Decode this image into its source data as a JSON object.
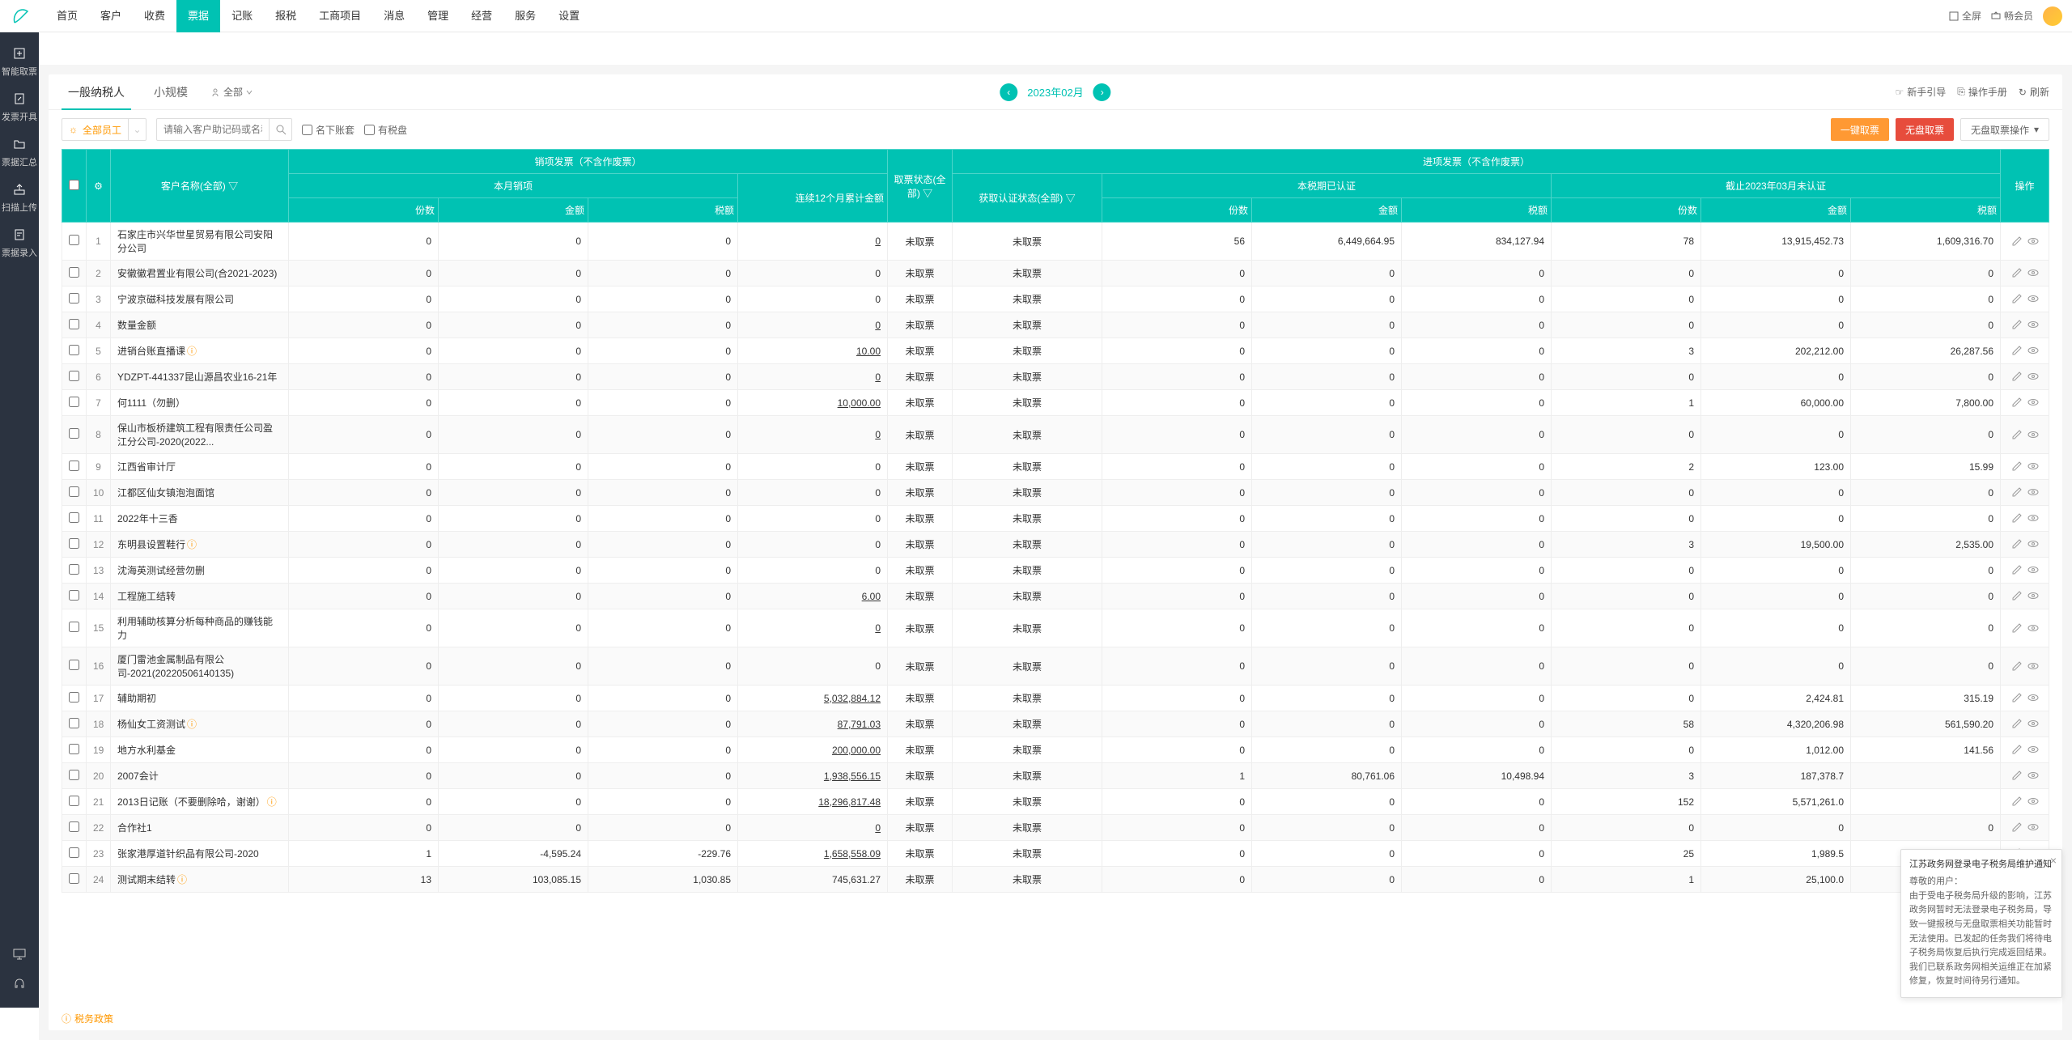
{
  "top_nav": {
    "items": [
      "首页",
      "客户",
      "收费",
      "票据",
      "记账",
      "报税",
      "工商项目",
      "消息",
      "管理",
      "经营",
      "服务",
      "设置"
    ],
    "active_index": 3,
    "right": {
      "fullscreen": "全屏",
      "member": "畅会员"
    }
  },
  "sidebar": {
    "items": [
      {
        "label": "智能取票",
        "icon": "plus-box"
      },
      {
        "label": "发票开具",
        "icon": "edit-doc"
      },
      {
        "label": "票据汇总",
        "icon": "folder"
      },
      {
        "label": "扫描上传",
        "icon": "upload"
      },
      {
        "label": "票据录入",
        "icon": "edit-doc2"
      }
    ]
  },
  "tabs": {
    "list": [
      "一般纳税人",
      "小规模"
    ],
    "active_index": 0,
    "filter_all": "全部",
    "date": "2023年02月",
    "right": {
      "guide": "新手引导",
      "manual": "操作手册",
      "refresh": "刷新"
    }
  },
  "filters": {
    "employee_select": "全部员工",
    "search_placeholder": "请输入客户助记码或名称",
    "cb1": "名下账套",
    "cb2": "有税盘",
    "btn_one_click": "一键取票",
    "btn_no_disk": "无盘取票",
    "btn_disk_ops": "无盘取票操作"
  },
  "table": {
    "headers": {
      "customer": "客户名称(全部)",
      "sales_group": "销项发票（不含作废票）",
      "this_month": "本月销项",
      "qty": "份数",
      "amount": "金额",
      "tax": "税额",
      "cumulative": "连续12个月累计金额",
      "fetch_status": "取票状态(全部)",
      "purchase_group": "进项发票（不含作废票）",
      "certified": "本税期已认证",
      "uncertified": "截止2023年03月未认证",
      "auth_status": "获取认证状态(全部)",
      "ops": "操作"
    },
    "rows": [
      {
        "n": 1,
        "name": "石家庄市兴华世星贸易有限公司安阳分公司",
        "warn": false,
        "q": 0,
        "a": "0",
        "t": "0",
        "cum": "0",
        "u": true,
        "fs": "未取票",
        "as": "未取票",
        "cq": 56,
        "ca": "6,449,664.95",
        "ct": "834,127.94",
        "uq": 78,
        "ua": "13,915,452.73",
        "ut": "1,609,316.70"
      },
      {
        "n": 2,
        "name": "安徽徽君置业有限公司(合2021-2023)",
        "warn": false,
        "q": 0,
        "a": "0",
        "t": "0",
        "cum": "0",
        "u": false,
        "fs": "未取票",
        "as": "未取票",
        "cq": 0,
        "ca": "0",
        "ct": "0",
        "uq": 0,
        "ua": "0",
        "ut": "0"
      },
      {
        "n": 3,
        "name": "宁波京磁科技发展有限公司",
        "warn": false,
        "q": 0,
        "a": "0",
        "t": "0",
        "cum": "0",
        "u": false,
        "fs": "未取票",
        "as": "未取票",
        "cq": 0,
        "ca": "0",
        "ct": "0",
        "uq": 0,
        "ua": "0",
        "ut": "0"
      },
      {
        "n": 4,
        "name": "数量金额",
        "warn": false,
        "q": 0,
        "a": "0",
        "t": "0",
        "cum": "0",
        "u": true,
        "fs": "未取票",
        "as": "未取票",
        "cq": 0,
        "ca": "0",
        "ct": "0",
        "uq": 0,
        "ua": "0",
        "ut": "0"
      },
      {
        "n": 5,
        "name": "进销台账直播课",
        "warn": true,
        "q": 0,
        "a": "0",
        "t": "0",
        "cum": "10.00",
        "u": true,
        "fs": "未取票",
        "as": "未取票",
        "cq": 0,
        "ca": "0",
        "ct": "0",
        "uq": 3,
        "ua": "202,212.00",
        "ut": "26,287.56"
      },
      {
        "n": 6,
        "name": "YDZPT-441337昆山源昌农业16-21年",
        "warn": false,
        "q": 0,
        "a": "0",
        "t": "0",
        "cum": "0",
        "u": true,
        "fs": "未取票",
        "as": "未取票",
        "cq": 0,
        "ca": "0",
        "ct": "0",
        "uq": 0,
        "ua": "0",
        "ut": "0"
      },
      {
        "n": 7,
        "name": "何1111（勿删）",
        "warn": false,
        "q": 0,
        "a": "0",
        "t": "0",
        "cum": "10,000.00",
        "u": true,
        "fs": "未取票",
        "as": "未取票",
        "cq": 0,
        "ca": "0",
        "ct": "0",
        "uq": 1,
        "ua": "60,000.00",
        "ut": "7,800.00"
      },
      {
        "n": 8,
        "name": "保山市板桥建筑工程有限责任公司盈江分公司-2020(2022...",
        "warn": false,
        "q": 0,
        "a": "0",
        "t": "0",
        "cum": "0",
        "u": true,
        "fs": "未取票",
        "as": "未取票",
        "cq": 0,
        "ca": "0",
        "ct": "0",
        "uq": 0,
        "ua": "0",
        "ut": "0"
      },
      {
        "n": 9,
        "name": "江西省审计厅",
        "warn": false,
        "q": 0,
        "a": "0",
        "t": "0",
        "cum": "0",
        "u": false,
        "fs": "未取票",
        "as": "未取票",
        "cq": 0,
        "ca": "0",
        "ct": "0",
        "uq": 2,
        "ua": "123.00",
        "ut": "15.99"
      },
      {
        "n": 10,
        "name": "江都区仙女镇泡泡面馆",
        "warn": false,
        "q": 0,
        "a": "0",
        "t": "0",
        "cum": "0",
        "u": false,
        "fs": "未取票",
        "as": "未取票",
        "cq": 0,
        "ca": "0",
        "ct": "0",
        "uq": 0,
        "ua": "0",
        "ut": "0"
      },
      {
        "n": 11,
        "name": "2022年十三香",
        "warn": false,
        "q": 0,
        "a": "0",
        "t": "0",
        "cum": "0",
        "u": false,
        "fs": "未取票",
        "as": "未取票",
        "cq": 0,
        "ca": "0",
        "ct": "0",
        "uq": 0,
        "ua": "0",
        "ut": "0"
      },
      {
        "n": 12,
        "name": "东明县设置鞋行",
        "warn": true,
        "q": 0,
        "a": "0",
        "t": "0",
        "cum": "0",
        "u": false,
        "fs": "未取票",
        "as": "未取票",
        "cq": 0,
        "ca": "0",
        "ct": "0",
        "uq": 3,
        "ua": "19,500.00",
        "ut": "2,535.00"
      },
      {
        "n": 13,
        "name": "沈海英测试经营勿删",
        "warn": false,
        "q": 0,
        "a": "0",
        "t": "0",
        "cum": "0",
        "u": false,
        "fs": "未取票",
        "as": "未取票",
        "cq": 0,
        "ca": "0",
        "ct": "0",
        "uq": 0,
        "ua": "0",
        "ut": "0"
      },
      {
        "n": 14,
        "name": "工程施工结转",
        "warn": false,
        "q": 0,
        "a": "0",
        "t": "0",
        "cum": "6.00",
        "u": true,
        "fs": "未取票",
        "as": "未取票",
        "cq": 0,
        "ca": "0",
        "ct": "0",
        "uq": 0,
        "ua": "0",
        "ut": "0"
      },
      {
        "n": 15,
        "name": "利用辅助核算分析每种商品的赚钱能力",
        "warn": false,
        "q": 0,
        "a": "0",
        "t": "0",
        "cum": "0",
        "u": true,
        "fs": "未取票",
        "as": "未取票",
        "cq": 0,
        "ca": "0",
        "ct": "0",
        "uq": 0,
        "ua": "0",
        "ut": "0"
      },
      {
        "n": 16,
        "name": "厦门雷池金属制品有限公司-2021(20220506140135)",
        "warn": false,
        "q": 0,
        "a": "0",
        "t": "0",
        "cum": "0",
        "u": false,
        "fs": "未取票",
        "as": "未取票",
        "cq": 0,
        "ca": "0",
        "ct": "0",
        "uq": 0,
        "ua": "0",
        "ut": "0"
      },
      {
        "n": 17,
        "name": "辅助期初",
        "warn": false,
        "q": 0,
        "a": "0",
        "t": "0",
        "cum": "5,032,884.12",
        "u": true,
        "fs": "未取票",
        "as": "未取票",
        "cq": 0,
        "ca": "0",
        "ct": "0",
        "uq": 0,
        "ua": "2,424.81",
        "ut": "315.19"
      },
      {
        "n": 18,
        "name": "杨仙女工资测试",
        "warn": true,
        "q": 0,
        "a": "0",
        "t": "0",
        "cum": "87,791.03",
        "u": true,
        "fs": "未取票",
        "as": "未取票",
        "cq": 0,
        "ca": "0",
        "ct": "0",
        "uq": 58,
        "ua": "4,320,206.98",
        "ut": "561,590.20"
      },
      {
        "n": 19,
        "name": "地方水利基金",
        "warn": false,
        "q": 0,
        "a": "0",
        "t": "0",
        "cum": "200,000.00",
        "u": true,
        "fs": "未取票",
        "as": "未取票",
        "cq": 0,
        "ca": "0",
        "ct": "0",
        "uq": 0,
        "ua": "1,012.00",
        "ut": "141.56"
      },
      {
        "n": 20,
        "name": "2007会计",
        "warn": false,
        "q": 0,
        "a": "0",
        "t": "0",
        "cum": "1,938,556.15",
        "u": true,
        "fs": "未取票",
        "as": "未取票",
        "cq": 1,
        "ca": "80,761.06",
        "ct": "10,498.94",
        "uq": 3,
        "ua": "187,378.7",
        "ut": ""
      },
      {
        "n": 21,
        "name": "2013日记账（不要删除哈，谢谢）",
        "warn": true,
        "q": 0,
        "a": "0",
        "t": "0",
        "cum": "18,296,817.48",
        "u": true,
        "fs": "未取票",
        "as": "未取票",
        "cq": 0,
        "ca": "0",
        "ct": "0",
        "uq": 152,
        "ua": "5,571,261.0",
        "ut": ""
      },
      {
        "n": 22,
        "name": "合作社1",
        "warn": false,
        "q": 0,
        "a": "0",
        "t": "0",
        "cum": "0",
        "u": true,
        "fs": "未取票",
        "as": "未取票",
        "cq": 0,
        "ca": "0",
        "ct": "0",
        "uq": 0,
        "ua": "0",
        "ut": "0"
      },
      {
        "n": 23,
        "name": "张家港厚道针织品有限公司-2020",
        "warn": false,
        "q": 1,
        "a": "-4,595.24",
        "t": "-229.76",
        "cum": "1,658,558.09",
        "u": true,
        "fs": "未取票",
        "as": "未取票",
        "cq": 0,
        "ca": "0",
        "ct": "0",
        "uq": 25,
        "ua": "1,989.5",
        "ut": ""
      },
      {
        "n": 24,
        "name": "测试期末结转",
        "warn": true,
        "q": 13,
        "a": "103,085.15",
        "t": "1,030.85",
        "cum": "745,631.27",
        "u": false,
        "fs": "未取票",
        "as": "未取票",
        "cq": 0,
        "ca": "0",
        "ct": "0",
        "uq": 1,
        "ua": "25,100.0",
        "ut": ""
      }
    ]
  },
  "footer": {
    "policy": "税务政策"
  },
  "notif": {
    "title": "江苏政务网登录电子税务局维护通知",
    "body": "尊敬的用户：\n由于受电子税务局升级的影响，江苏政务网暂时无法登录电子税务局，导致一键报税与无盘取票相关功能暂时无法使用。已发起的任务我们将待电子税务局恢复后执行完成返回结果。我们已联系政务网相关运维正在加紧修复，恢复时间待另行通知。"
  }
}
